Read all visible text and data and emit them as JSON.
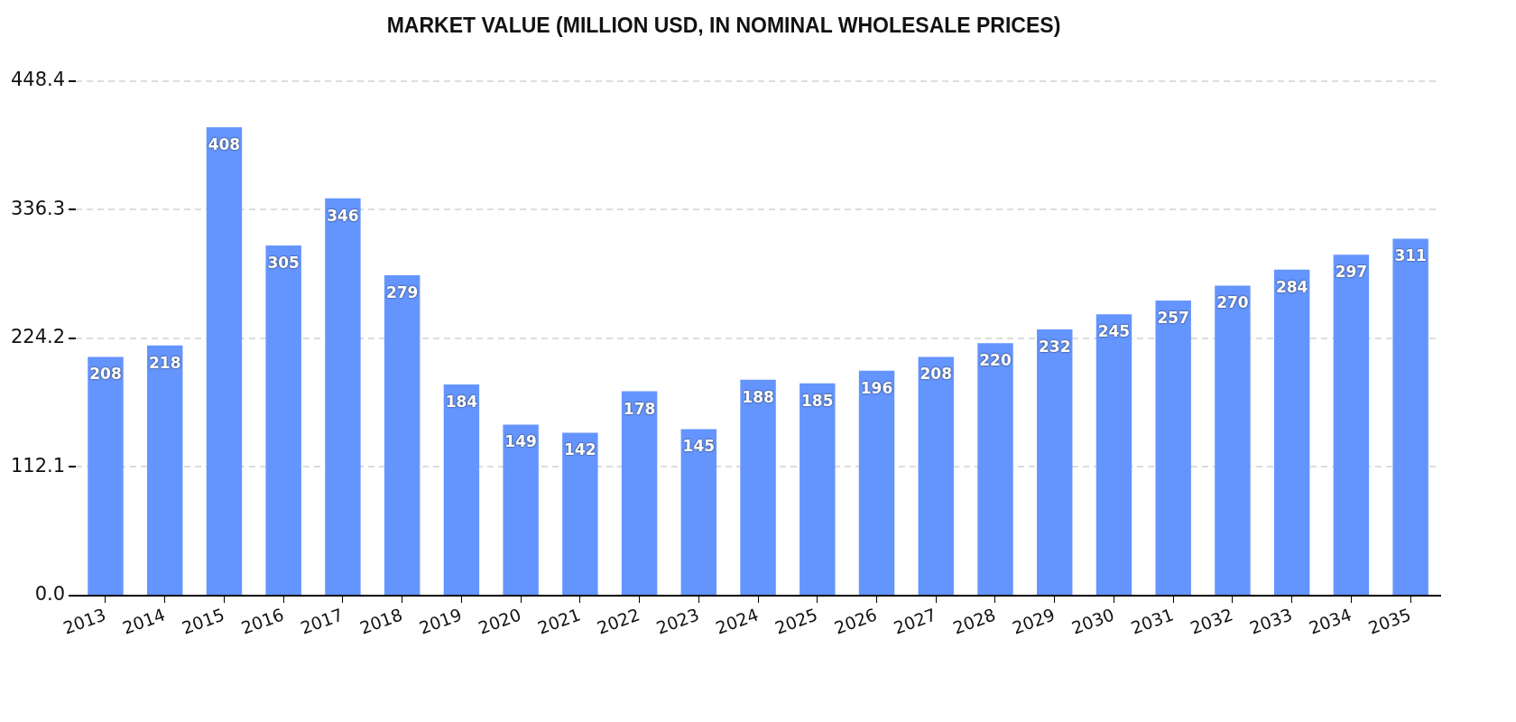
{
  "chart_data": {
    "type": "bar",
    "title": "MARKET VALUE (MILLION USD, IN NOMINAL WHOLESALE PRICES)",
    "categories": [
      "2013",
      "2014",
      "2015",
      "2016",
      "2017",
      "2018",
      "2019",
      "2020",
      "2021",
      "2022",
      "2023",
      "2024",
      "2025",
      "2026",
      "2027",
      "2028",
      "2029",
      "2030",
      "2031",
      "2032",
      "2033",
      "2034",
      "2035"
    ],
    "values": [
      208,
      218,
      408,
      305,
      346,
      279,
      184,
      149,
      142,
      178,
      145,
      188,
      185,
      196,
      208,
      220,
      232,
      245,
      257,
      270,
      284,
      297,
      311
    ],
    "color": "#6495ff",
    "ylim": [
      0,
      448.4
    ],
    "yticks": [
      {
        "value": 0,
        "label": "0.0"
      },
      112.1,
      224.2,
      336.3,
      448.4
    ],
    "grid": "y",
    "data_labels": true
  }
}
